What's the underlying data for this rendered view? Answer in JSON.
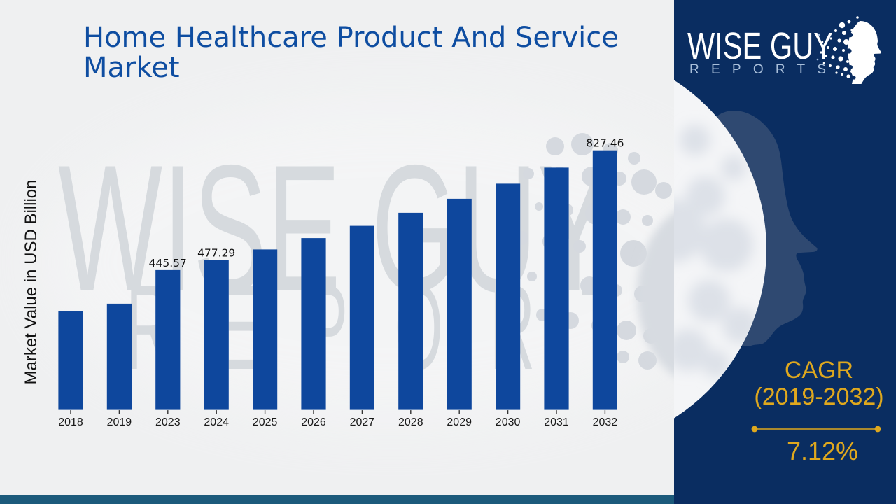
{
  "page": {
    "background_color": "#eff0f1",
    "panel_color": "#0a2d61",
    "footer_strip_color": "#1c5a7b"
  },
  "title": {
    "text": "Home Healthcare Product And Service Market",
    "color": "#0e4da1"
  },
  "brand": {
    "name_line1": "WISE GUY",
    "name_line2": "REPORTS",
    "head_icon": "head-profile-with-dots"
  },
  "watermark": {
    "line1": "WISE GUY",
    "line2": "REPORTS"
  },
  "cagr": {
    "label_line1": "CAGR",
    "label_line2": "(2019-2032)",
    "value": "7.12%",
    "color": "#dfa81e"
  },
  "chart_data": {
    "type": "bar",
    "categories": [
      "2018",
      "2019",
      "2023",
      "2024",
      "2025",
      "2026",
      "2027",
      "2028",
      "2029",
      "2030",
      "2031",
      "2032"
    ],
    "values": [
      315.93,
      338.42,
      445.57,
      477.29,
      511.27,
      547.67,
      586.66,
      628.43,
      673.17,
      721.1,
      772.44,
      827.46
    ],
    "bar_labels": {
      "2023": "445.57",
      "2024": "477.29",
      "2032": "827.46"
    },
    "xlabel": "",
    "ylabel": "Market Value in USD Billion",
    "ylim": [
      0,
      880
    ],
    "grid": false,
    "legend": null,
    "bar_color": "#0e479d",
    "tick_label_color": "#1a1a1a",
    "bar_label_color": "#111111"
  }
}
